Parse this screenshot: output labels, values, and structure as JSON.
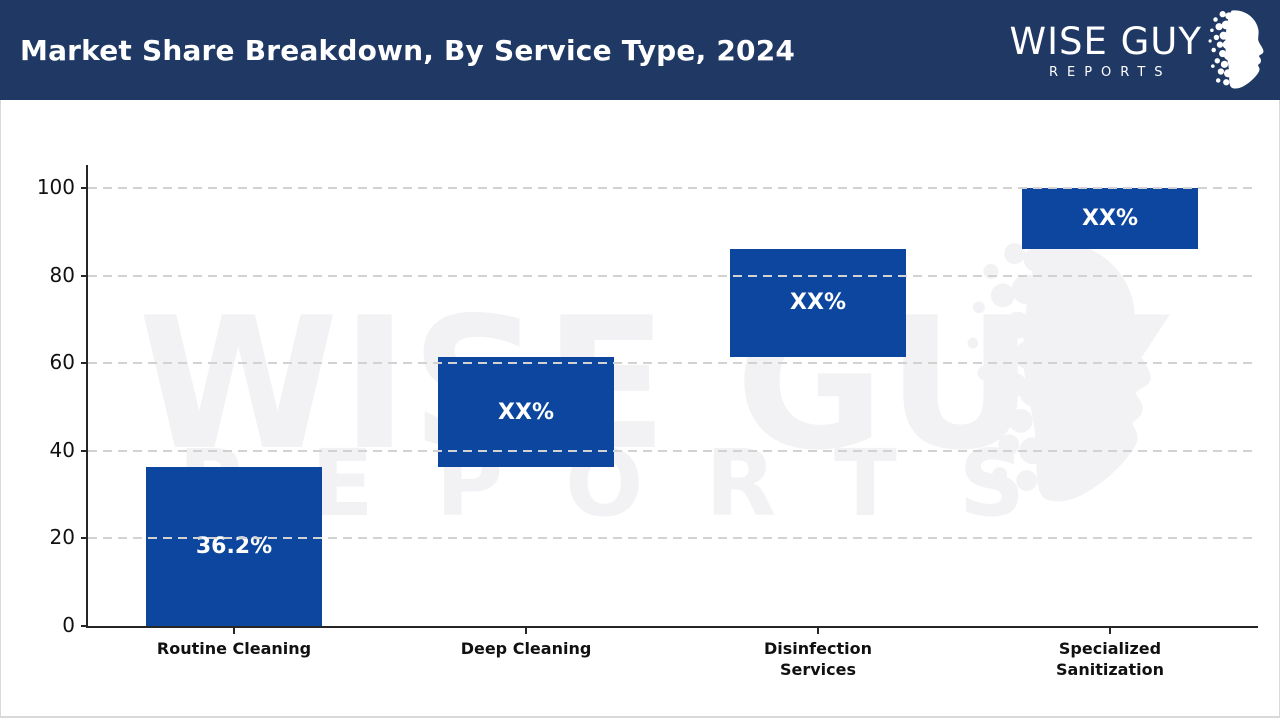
{
  "header": {
    "title": "Market Share Breakdown, By Service Type, 2024",
    "bg_color": "#1f3864",
    "logo": {
      "line1": "WISE GUY",
      "line2": "REPORTS"
    }
  },
  "watermark": {
    "line1": "WISE GUY",
    "line2": "REPORTS"
  },
  "chart_data": {
    "type": "bar",
    "subtype": "waterfall-stacked-range",
    "title": "Market Share Breakdown, By Service Type, 2024",
    "categories": [
      "Routine Cleaning",
      "Deep Cleaning",
      "Disinfection Services",
      "Specialized Sanitization"
    ],
    "segments": [
      {
        "category": "Routine Cleaning",
        "start": 0,
        "end": 36.2,
        "label": "36.2%"
      },
      {
        "category": "Deep Cleaning",
        "start": 36.2,
        "end": 61.5,
        "label": "XX%"
      },
      {
        "category": "Disinfection Services",
        "start": 61.5,
        "end": 86.0,
        "label": "XX%"
      },
      {
        "category": "Specialized Sanitization",
        "start": 86.0,
        "end": 100.0,
        "label": "XX%"
      }
    ],
    "xlabel": "",
    "ylabel": "",
    "ylim": [
      0,
      100
    ],
    "yticks": [
      0,
      20,
      40,
      60,
      80,
      100
    ],
    "grid": "horizontal-dashed",
    "legend": "none",
    "bar_color": "#0c469e",
    "bar_label_color": "#ffffff",
    "axis_color": "#262626",
    "gridline_color": "#d2d2d2"
  }
}
